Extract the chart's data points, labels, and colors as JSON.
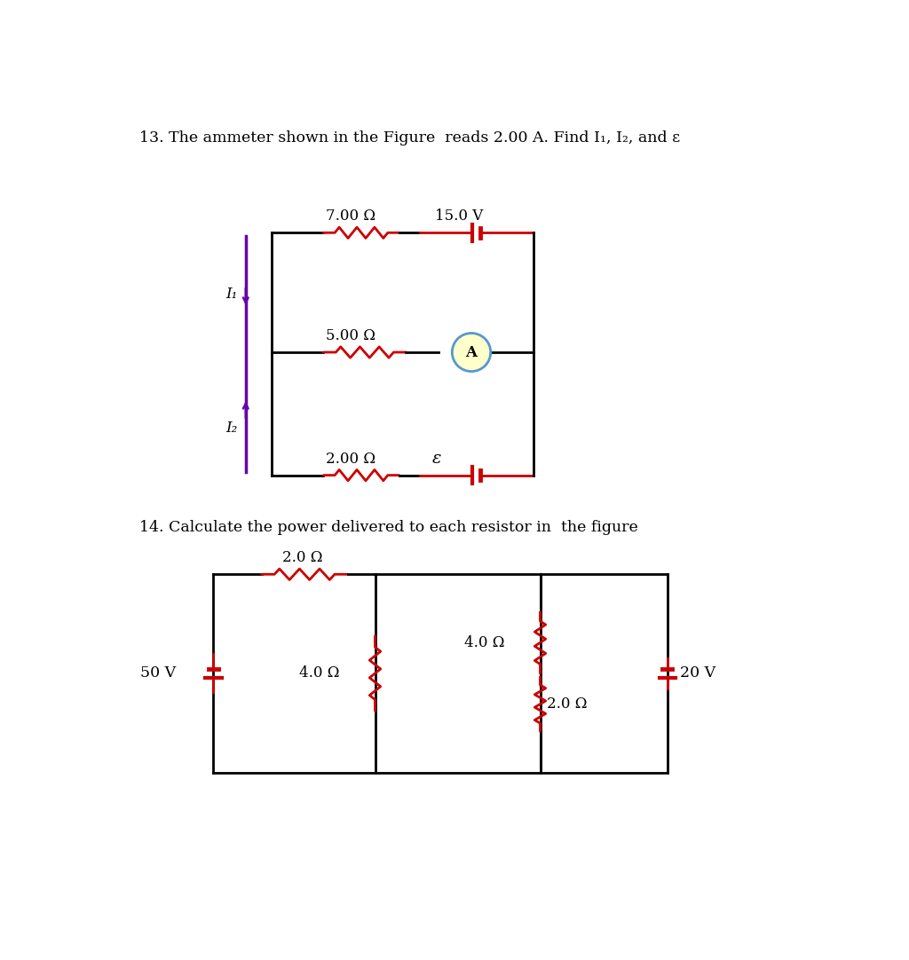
{
  "title1": "13. The ammeter shown in the Figure  reads 2.00 A. Find I₁, I₂, and ε",
  "title2": "14. Calculate the power delivered to each resistor in  the figure",
  "bg_color": "#ffffff",
  "circuit1": {
    "resistor_color": "#cc0000",
    "wire_color": "#000000",
    "battery_color": "#cc0000",
    "arrow_color": "#6600aa",
    "ammeter_fill": "#ffffcc",
    "ammeter_stroke": "#5599cc",
    "labels": {
      "top_resistor": "7.00 Ω",
      "top_battery": "15.0 V",
      "mid_resistor": "5.00 Ω",
      "bot_resistor": "2.00 Ω",
      "bot_battery": "ε",
      "I1": "I₁",
      "I2": "I₂"
    }
  },
  "circuit2": {
    "resistor_color": "#cc0000",
    "wire_color": "#000000",
    "battery_color": "#cc0000",
    "labels": {
      "top_resistor": "2.0 Ω",
      "left_battery": "50 V",
      "mid_left_resistor": "4.0 Ω",
      "mid_right_resistor": "4.0 Ω",
      "bottom_resistor": "2.0 Ω",
      "right_battery": "20 V"
    }
  }
}
